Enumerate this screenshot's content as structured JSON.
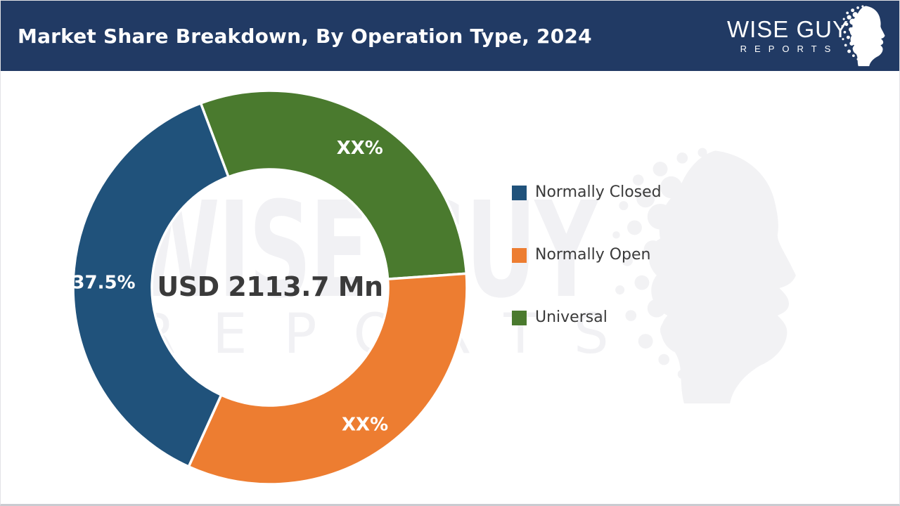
{
  "header": {
    "title": "Market Share Breakdown, By Operation Type, 2024",
    "bg_color": "#213a64",
    "logo": {
      "brand_top": "WISE GUY",
      "brand_bottom": "REPORTS"
    }
  },
  "watermark": {
    "text_top": "WISE GUY",
    "text_bottom": "REPORTS"
  },
  "chart_data": {
    "type": "donut",
    "title": "Market Share Breakdown, By Operation Type, 2024",
    "center_label": "USD 2113.7 Mn",
    "start_angle_deg": -20.6,
    "inner_radius_ratio": 0.6,
    "legend_position": "right",
    "label_text_color": "#ffffff",
    "separator_color": "#ffffff",
    "segments": [
      {
        "name": "Normally Closed",
        "value": 37.5,
        "label": "37.5%",
        "color": "#20527b"
      },
      {
        "name": "Normally Open",
        "value": 32.9,
        "label": "XX%",
        "color": "#ed7d31"
      },
      {
        "name": "Universal",
        "value": 29.6,
        "label": "XX%",
        "color": "#4a7a2e"
      }
    ]
  }
}
